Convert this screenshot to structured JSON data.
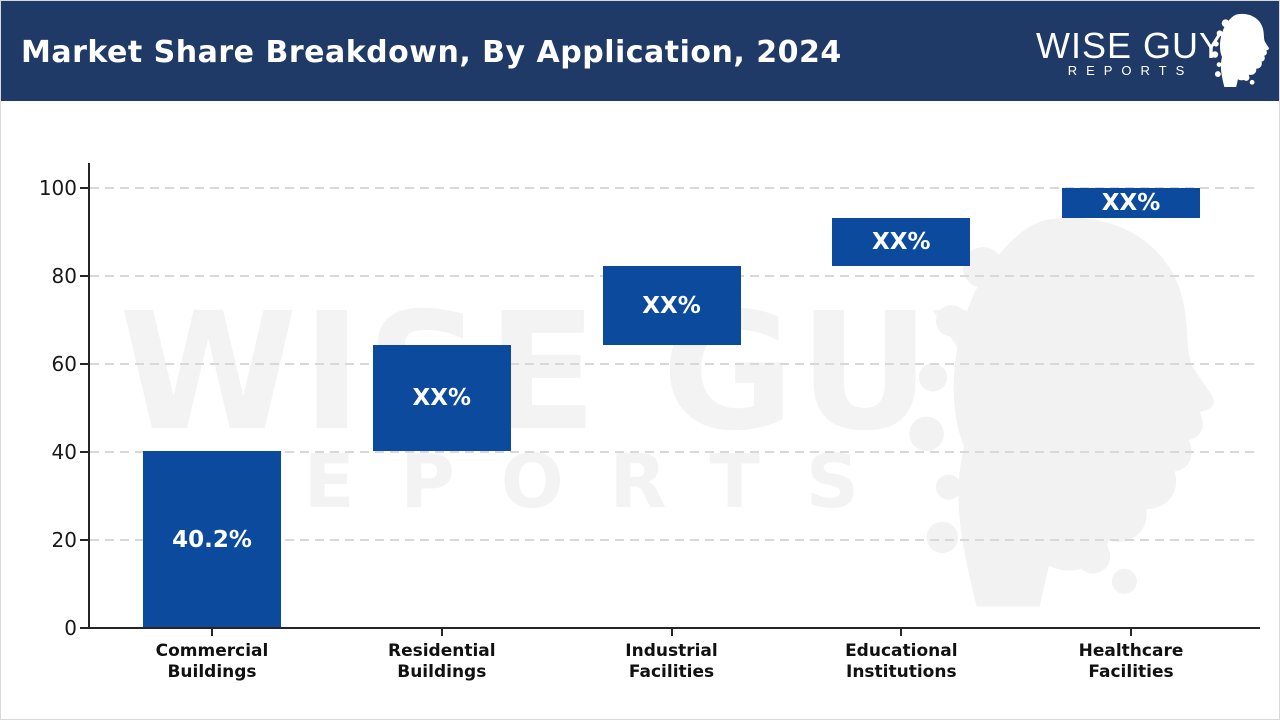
{
  "page": {
    "background": "#ffffff",
    "border_color": "#d9d9d9"
  },
  "header": {
    "background": "#203a68",
    "title": "Market Share Breakdown, By Application, 2024",
    "logo": {
      "wordmark": "WISE GUY",
      "subtext": "REPORTS",
      "icon": "head-of-dots-logo"
    }
  },
  "watermark": {
    "wordmark": "WISE GUY",
    "subtext": "REPORTS",
    "icon": "head-of-dots-watermark"
  },
  "chart_data": {
    "type": "bar",
    "subtype": "waterfall-floating-bars",
    "title": "Market Share Breakdown, By Application, 2024",
    "categories": [
      "Commercial\nBuildings",
      "Residential\nBuildings",
      "Industrial\nFacilities",
      "Educational\nInstitutions",
      "Healthcare\nFacilities"
    ],
    "segments": [
      {
        "start": 0,
        "end": 40.2,
        "label": "40.2%"
      },
      {
        "start": 40.2,
        "end": 64.3,
        "label": "XX%"
      },
      {
        "start": 64.3,
        "end": 82.2,
        "label": "XX%"
      },
      {
        "start": 82.2,
        "end": 93.2,
        "label": "XX%"
      },
      {
        "start": 93.2,
        "end": 100,
        "label": "XX%"
      }
    ],
    "values": [
      40.2,
      24.1,
      17.9,
      11.0,
      6.8
    ],
    "bar_labels": [
      "40.2%",
      "XX%",
      "XX%",
      "XX%",
      "XX%"
    ],
    "xlabel": "",
    "ylabel": "",
    "ylim": [
      0,
      100
    ],
    "yticks": [
      0,
      20,
      40,
      60,
      80,
      100
    ],
    "grid": "horizontal-dashed",
    "legend": "none",
    "bar_color": "#0c4a9e",
    "label_color": "#ffffff"
  }
}
